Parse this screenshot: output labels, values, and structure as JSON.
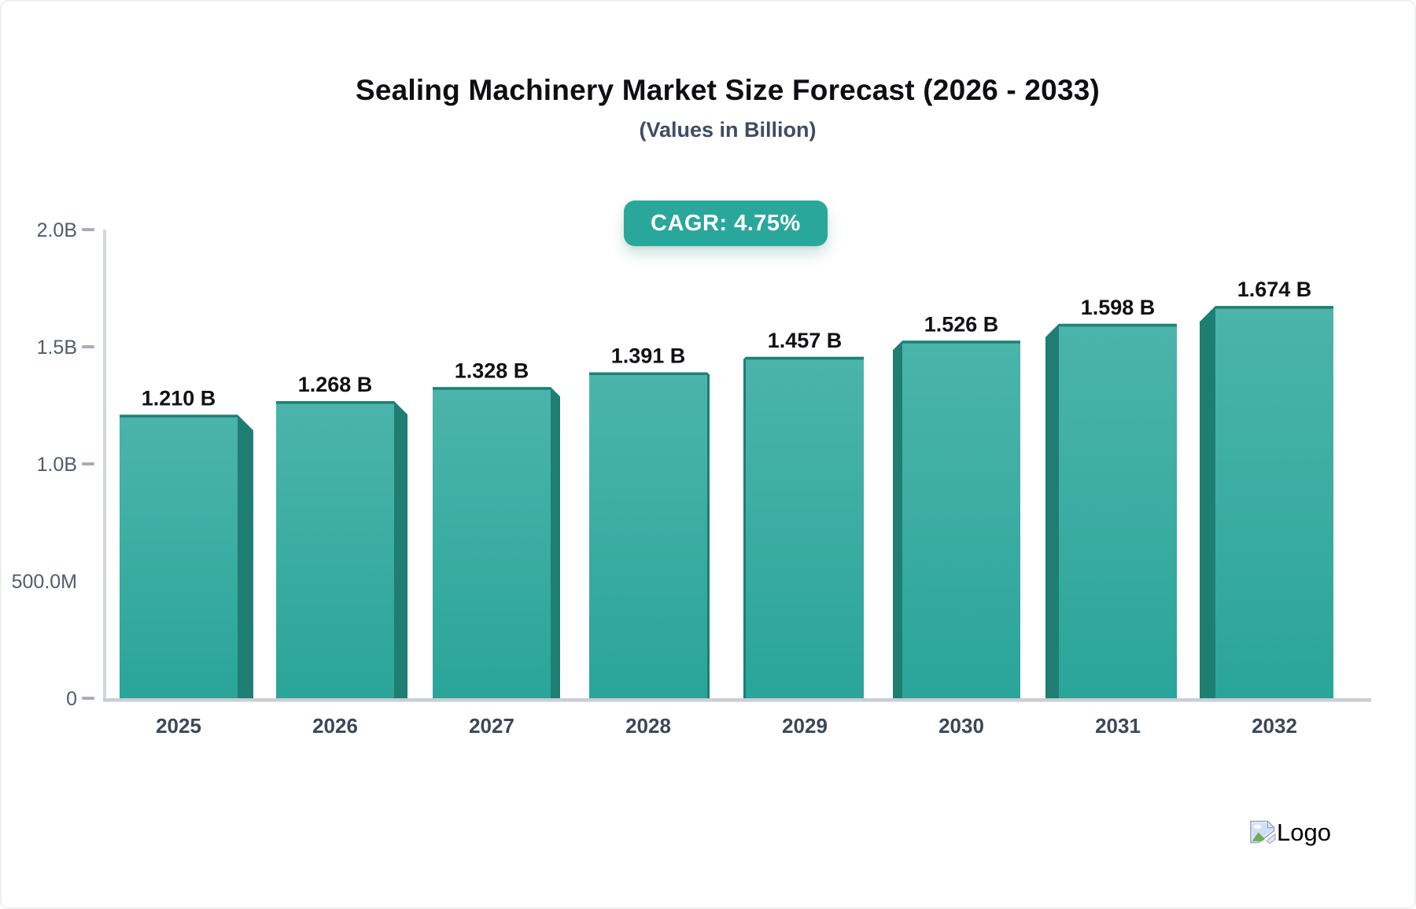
{
  "page": {
    "background": "#ffffff",
    "border_color": "#eef0f3"
  },
  "header": {
    "title": "Sealing Machinery Market Size Forecast (2026 - 2033)",
    "subtitle": "(Values in Billion)"
  },
  "cagr_badge": {
    "label": "CAGR: 4.75%",
    "bg_color": "#2aa79b",
    "text_color": "#ffffff"
  },
  "logo": {
    "alt_text": "Logo"
  },
  "chart_data": {
    "type": "bar",
    "title": "Sealing Machinery Market Size Forecast (2026 - 2033)",
    "subtitle": "(Values in Billion)",
    "annotation": "CAGR: 4.75%",
    "categories": [
      "2025",
      "2026",
      "2027",
      "2028",
      "2029",
      "2030",
      "2031",
      "2032"
    ],
    "values": [
      1.21,
      1.268,
      1.328,
      1.391,
      1.457,
      1.526,
      1.598,
      1.674
    ],
    "value_labels": [
      "1.210 B",
      "1.268 B",
      "1.328 B",
      "1.391 B",
      "1.457 B",
      "1.526 B",
      "1.598 B",
      "1.674 B"
    ],
    "unit": "billion USD",
    "ylim": [
      0,
      2
    ],
    "yticks": [
      {
        "label": "2.0B",
        "value": 2.0,
        "dash": true
      },
      {
        "label": "1.5B",
        "value": 1.5,
        "dash": true
      },
      {
        "label": "1.0B",
        "value": 1.0,
        "dash": true
      },
      {
        "label": "500.0M",
        "value": 0.5,
        "dash": false
      },
      {
        "label": "0",
        "value": 0,
        "dash": true
      }
    ],
    "grid": false,
    "legend": null,
    "colors": {
      "bar_face_top": "#4cb4aa",
      "bar_face_bottom": "#2aa599",
      "bar_side": "#1f7e73",
      "bar_top_edge": "#1d8276",
      "axis_line": "#d3d6de",
      "baseline": "#c9ced6",
      "tick_dash": "#a7adbb",
      "tick_label": "#505c6e",
      "category_label": "#3b4759",
      "value_label": "#0f1115"
    }
  }
}
